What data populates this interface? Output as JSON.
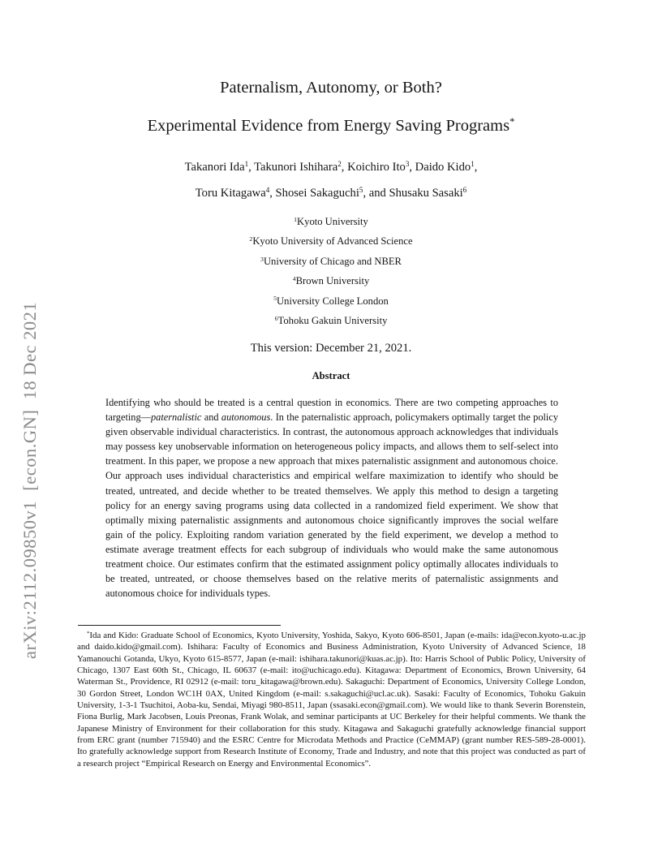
{
  "watermark": {
    "text": "arXiv:2112.09850v1  [econ.GN]  18 Dec 2021",
    "color": "#8b8b8b"
  },
  "title": {
    "line1": "Paternalism, Autonomy, or Both?",
    "line2_segments": [
      {
        "text": "Experimental Evidence from Energy Saving Programs",
        "sup": "*"
      }
    ]
  },
  "authors": {
    "line1": [
      {
        "text": "Takanori Ida",
        "sup": "1"
      },
      {
        "text": ", Takunori Ishihara",
        "sup": "2"
      },
      {
        "text": ", Koichiro Ito",
        "sup": "3"
      },
      {
        "text": ", Daido Kido",
        "sup": "1"
      },
      {
        "text": ","
      }
    ],
    "line2": [
      {
        "text": "Toru Kitagawa",
        "sup": "4"
      },
      {
        "text": ", Shosei Sakaguchi",
        "sup": "5"
      },
      {
        "text": ", and Shusaku Sasaki",
        "sup": "6"
      }
    ]
  },
  "affiliations": [
    [
      {
        "sup_before": "1",
        "text": "Kyoto University"
      }
    ],
    [
      {
        "sup_before": "2",
        "text": "Kyoto University of Advanced Science"
      }
    ],
    [
      {
        "sup_before": "3",
        "text": "University of Chicago and NBER"
      }
    ],
    [
      {
        "sup_before": "4",
        "text": "Brown University"
      }
    ],
    [
      {
        "sup_before": "5",
        "text": "University College London"
      }
    ],
    [
      {
        "sup_before": "6",
        "text": "Tohoku Gakuin University"
      }
    ]
  ],
  "version_line": "This version: December 21, 2021.",
  "abstract": {
    "heading": "Abstract",
    "segments": [
      {
        "text": "Identifying who should be treated is a central question in economics. There are two competing approaches to targeting—"
      },
      {
        "text": "paternalistic",
        "style": "italic"
      },
      {
        "text": " and "
      },
      {
        "text": "autonomous",
        "style": "italic"
      },
      {
        "text": ". In the paternalistic approach, policymakers optimally target the policy given observable individual characteristics. In contrast, the autonomous approach acknowledges that individuals may possess key unobservable information on heterogeneous policy impacts, and allows them to self-select into treatment. In this paper, we propose a new approach that mixes paternalistic assignment and autonomous choice. Our approach uses individual characteristics and empirical welfare maximization to identify who should be treated, untreated, and decide whether to be treated themselves. We apply this method to design a targeting policy for an energy saving programs using data collected in a randomized field experiment. We show that optimally mixing paternalistic assignments and autonomous choice significantly improves the social welfare gain of the policy. Exploiting random variation generated by the field experiment, we develop a method to estimate average treatment effects for each subgroup of individuals who would make the same autonomous treatment choice. Our estimates confirm that the estimated assignment policy optimally allocates individuals to be treated, untreated, or choose themselves based on the relative merits of paternalistic assignments and autonomous choice for individuals types."
      }
    ]
  },
  "footnote": {
    "segments": [
      {
        "sup_before": "*",
        "text": "Ida and Kido: Graduate School of Economics, Kyoto University, Yoshida, Sakyo, Kyoto 606-8501, Japan (e-mails: ida@econ.kyoto-u.ac.jp and daido.kido@gmail.com). Ishihara: Faculty of Economics and Business Administration, Kyoto University of Advanced Science, 18 Yamanouchi Gotanda, Ukyo, Kyoto 615-8577, Japan (e-mail: ishihara.takunori@kuas.ac.jp). Ito: Harris School of Public Policy, University of Chicago, 1307 East 60th St., Chicago, IL 60637 (e-mail: ito@uchicago.edu). Kitagawa: Department of Economics, Brown University, 64 Waterman St., Providence, RI 02912 (e-mail: toru_kitagawa@brown.edu). Sakaguchi: Department of Economics, University College London, 30 Gordon Street, London WC1H 0AX, United Kingdom (e-mail: s.sakaguchi@ucl.ac.uk). Sasaki: Faculty of Economics, Tohoku Gakuin University, 1-3-1 Tsuchitoi, Aoba-ku, Sendai, Miyagi 980-8511, Japan (ssasaki.econ@gmail.com). We would like to thank Severin Borenstein, Fiona Burlig, Mark Jacobsen, Louis Preonas, Frank Wolak, and seminar participants at UC Berkeley for their helpful comments. We thank the Japanese Ministry of Environment for their collaboration for this study. Kitagawa and Sakaguchi gratefully acknowledge financial support from ERC grant (number 715940) and the ESRC Centre for Microdata Methods and Practice (CeMMAP) (grant number RES-589-28-0001). Ito gratefully acknowledge support from Research Institute of Economy, Trade and Industry, and note that this project was conducted as part of a research project “Empirical Research on Energy and Environmental Economics”."
      }
    ]
  }
}
